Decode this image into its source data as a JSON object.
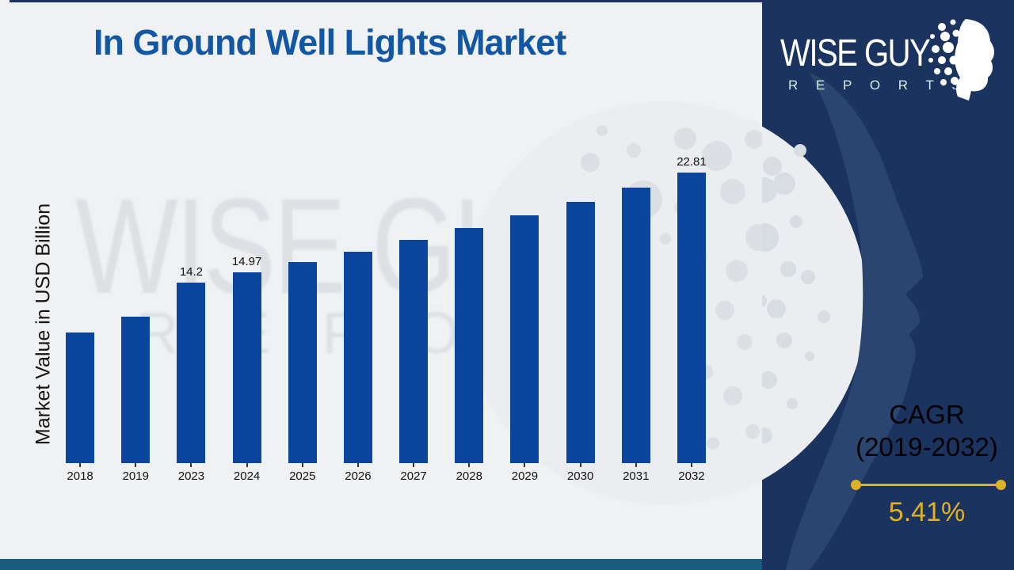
{
  "page": {
    "title": "In Ground Well Lights Market"
  },
  "logo": {
    "line1": "WISE GUY",
    "line2": "R E P O R T S"
  },
  "watermark": {
    "line1": "WISE GUY",
    "line2": "REPORTS"
  },
  "cagr": {
    "label": "CAGR",
    "range": "(2019-2032)",
    "value": "5.41%"
  },
  "chart_data": {
    "type": "bar",
    "title": "In Ground Well Lights Market",
    "xlabel": "",
    "ylabel": "Market Value in USD Billion",
    "categories": [
      "2018",
      "2019",
      "2023",
      "2024",
      "2025",
      "2026",
      "2027",
      "2028",
      "2029",
      "2030",
      "2031",
      "2032"
    ],
    "values": [
      10.26,
      11.5,
      14.2,
      14.97,
      15.78,
      16.63,
      17.53,
      18.48,
      19.48,
      20.53,
      21.64,
      22.81
    ],
    "bar_value_labels": [
      "",
      "",
      "14.2",
      "14.97",
      "",
      "",
      "",
      "",
      "",
      "",
      "",
      "22.81"
    ],
    "ylim": [
      0,
      27
    ],
    "grid": false,
    "legend": null,
    "bar_color": "#0b469e"
  },
  "colors": {
    "background": "#f0f1f2",
    "title_blue": "#1257a4",
    "bar_blue": "#0b469e",
    "navy_panel": "#1a335f",
    "navy_face": "#2a4570",
    "teal_band": "#1a5c7e",
    "gold": "#dfb125",
    "watermark_gray": "#dde0e5",
    "circle_gray": "#ebedf0"
  }
}
